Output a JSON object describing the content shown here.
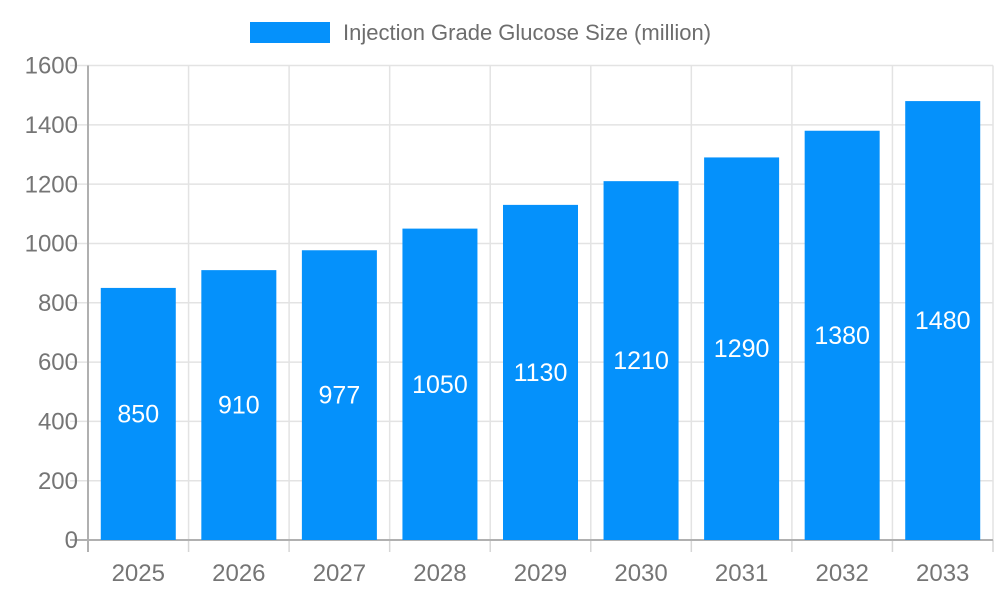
{
  "chart_data": {
    "type": "bar",
    "categories": [
      "2025",
      "2026",
      "2027",
      "2028",
      "2029",
      "2030",
      "2031",
      "2032",
      "2033"
    ],
    "series": [
      {
        "name": "Injection Grade Glucose Size (million)",
        "values": [
          850,
          910,
          977,
          1050,
          1130,
          1210,
          1290,
          1380,
          1480
        ],
        "color": "#0591fb"
      }
    ],
    "value_labels": [
      850,
      910,
      977,
      1050,
      1130,
      1210,
      1290,
      1380,
      1480
    ],
    "value_label_position": "inside-center",
    "xlabel": "",
    "ylabel": "",
    "ylim": [
      0,
      1600
    ],
    "yticks": [
      0,
      200,
      400,
      600,
      800,
      1000,
      1200,
      1400,
      1600
    ],
    "grid": true,
    "legend": {
      "position": "top",
      "items": [
        {
          "label": "Injection Grade Glucose Size (million)",
          "color": "#0591fb"
        }
      ]
    }
  },
  "colors": {
    "bar": "#0591fb",
    "grid": "#e3e3e3",
    "axis": "#b0b0b0",
    "tick": "#d6d6d6",
    "axis_label": "#757575",
    "legend_label": "#6d6d6d",
    "value_label": "#ffffff",
    "background": "#ffffff"
  }
}
